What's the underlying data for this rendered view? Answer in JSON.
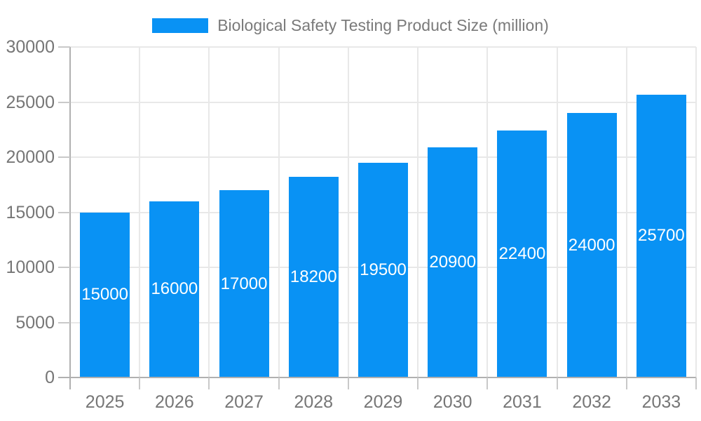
{
  "chart_data": {
    "type": "bar",
    "title": "Biological Safety Testing Product Size (million)",
    "categories": [
      "2025",
      "2026",
      "2027",
      "2028",
      "2029",
      "2030",
      "2031",
      "2032",
      "2033"
    ],
    "values": [
      15000,
      16000,
      17000,
      18200,
      19500,
      20900,
      22400,
      24000,
      25700
    ],
    "xlabel": "",
    "ylabel": "",
    "ylim": [
      0,
      30000
    ],
    "yticks": [
      0,
      5000,
      10000,
      15000,
      20000,
      25000,
      30000
    ],
    "grid": true,
    "legend_position": "top",
    "bar_labels_inside": true
  },
  "colors": {
    "bar": "#0992f4",
    "bar_label": "#ffffff",
    "axis_label": "#767676",
    "legend_text": "#7a7a7a",
    "axis_line": "#b0b0b0",
    "tick_line": "#c9c9c9",
    "gridline": "#e8e8e8",
    "background": "#ffffff"
  }
}
